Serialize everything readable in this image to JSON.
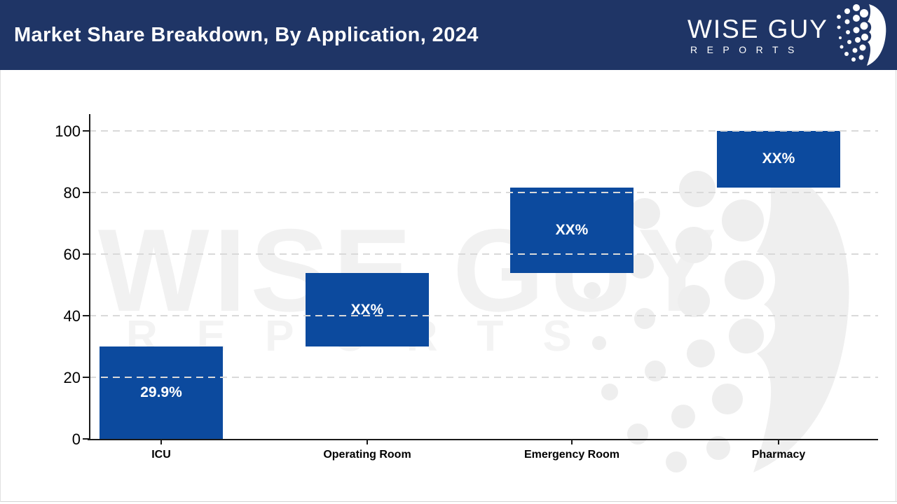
{
  "header": {
    "title": "Market Share Breakdown, By Application, 2024",
    "logo": {
      "name": "WISE GUY",
      "sub": "REPORTS"
    }
  },
  "chart_data": {
    "type": "bar",
    "subtype": "waterfall",
    "title": "Market Share Breakdown, By Application, 2024",
    "categories": [
      "ICU",
      "Operating Room",
      "Emergency Room",
      "Pharmacy"
    ],
    "segments": [
      {
        "category": "ICU",
        "start": 0,
        "end": 29.9,
        "label": "29.9%"
      },
      {
        "category": "Operating Room",
        "start": 29.9,
        "end": 53.8,
        "label": "XX%"
      },
      {
        "category": "Emergency Room",
        "start": 53.9,
        "end": 81.5,
        "label": "XX%"
      },
      {
        "category": "Pharmacy",
        "start": 81.6,
        "end": 100,
        "label": "XX%"
      }
    ],
    "y_ticks": [
      "0",
      "20",
      "40",
      "60",
      "80",
      "100"
    ],
    "ylim": [
      0,
      105
    ],
    "grid": "horizontal-dashed",
    "bar_color": "#0c4a9e",
    "watermark": {
      "line1": "WISE GUY",
      "line2": "REPORTS"
    }
  },
  "colors": {
    "header_bg": "#1f3566",
    "bar": "#0c4a9e",
    "grid": "#d9d9d9",
    "axis": "#1a1a1a",
    "watermark_text": "#f1f1f1"
  }
}
